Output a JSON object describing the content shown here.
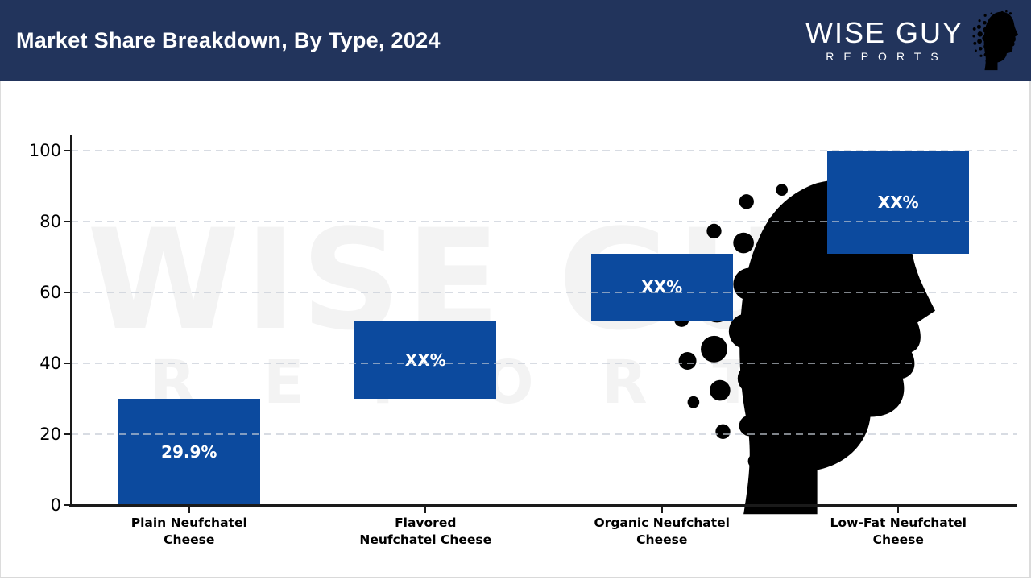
{
  "header": {
    "title": "Market Share Breakdown, By Type, 2024",
    "logo": {
      "wordmark": "WISE GUY",
      "subtitle": "REPORTS",
      "face_icon": "dotted-face-profile"
    },
    "bg_color": "#22345C"
  },
  "watermark": {
    "wordmark": "WISE GUY",
    "subtitle": "REPORTS"
  },
  "chart_data": {
    "type": "bar",
    "subtype": "waterfall-floating-bars",
    "title": "Market Share Breakdown, By Type, 2024",
    "categories": [
      "Plain Neufchatel Cheese",
      "Flavored Neufchatel Cheese",
      "Organic Neufchatel Cheese",
      "Low-Fat Neufchatel Cheese"
    ],
    "tick_label_lines": [
      [
        "Plain Neufchatel",
        "Cheese"
      ],
      [
        "Flavored",
        "Neufchatel Cheese"
      ],
      [
        "Organic Neufchatel",
        "Cheese"
      ],
      [
        "Low-Fat Neufchatel",
        "Cheese"
      ]
    ],
    "series": [
      {
        "name": "Market share (%)",
        "segments": [
          {
            "category": "Plain Neufchatel Cheese",
            "from": 0,
            "to": 29.9,
            "label": "29.9%"
          },
          {
            "category": "Flavored Neufchatel Cheese",
            "from": 29.9,
            "to": 52,
            "label": "XX%"
          },
          {
            "category": "Organic Neufchatel Cheese",
            "from": 52,
            "to": 71,
            "label": "XX%"
          },
          {
            "category": "Low-Fat Neufchatel Cheese",
            "from": 71,
            "to": 100,
            "label": "XX%"
          }
        ]
      }
    ],
    "ylim": [
      0,
      100
    ],
    "yticks": [
      0,
      20,
      40,
      60,
      80,
      100
    ],
    "xlabel": "",
    "ylabel": "",
    "grid": "dashed-horizontal",
    "legend": "none",
    "bar_color": "#0C4A9E",
    "bar_label_color": "#FFFFFF"
  }
}
